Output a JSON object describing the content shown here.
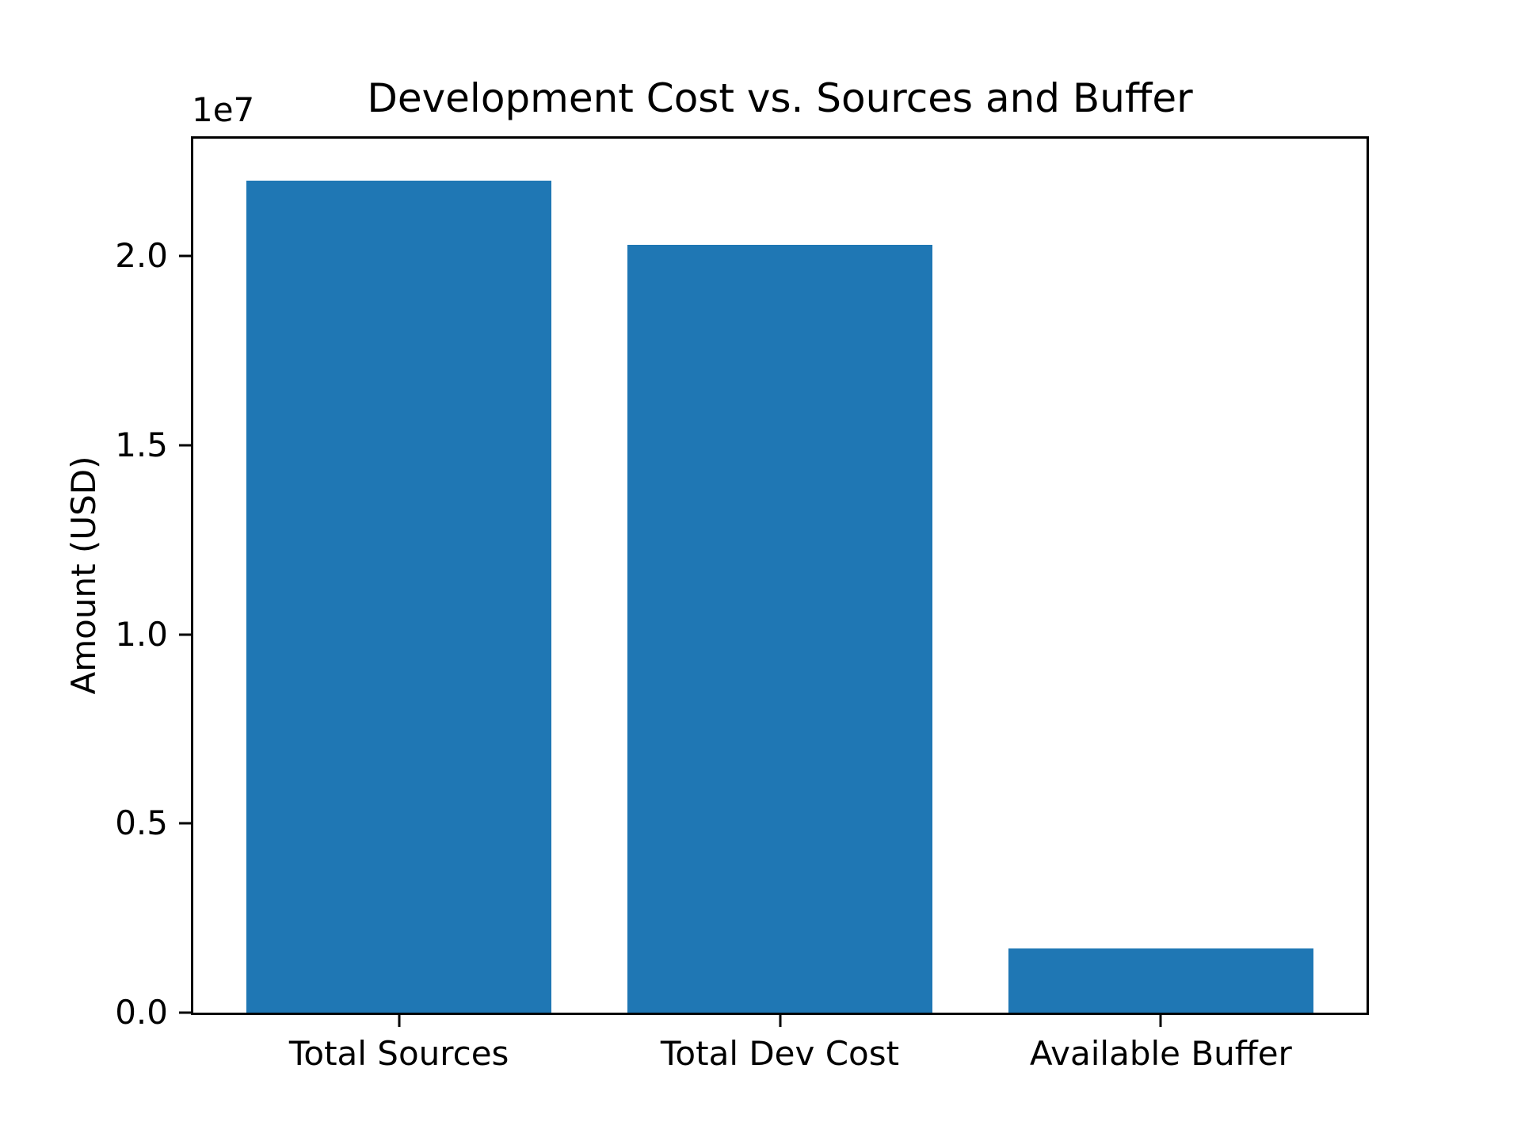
{
  "figure": {
    "background": "#ffffff"
  },
  "chart_data": {
    "type": "bar",
    "title": "Development Cost vs. Sources and Buffer",
    "ylabel": "Amount (USD)",
    "xlabel": "",
    "y_offset_text": "1e7",
    "categories": [
      "Total Sources",
      "Total Dev Cost",
      "Available Buffer"
    ],
    "values": [
      22000000,
      20300000,
      1700000
    ],
    "bar_color": "#1f77b4",
    "axis_color": "#000000",
    "text_color": "#000000",
    "ylim": [
      0,
      23100000
    ],
    "xlim": [
      -0.54,
      2.54
    ],
    "bar_width_units": 0.8,
    "yticks": [
      {
        "value": 0,
        "label": "0.0"
      },
      {
        "value": 5000000,
        "label": "0.5"
      },
      {
        "value": 10000000,
        "label": "1.0"
      },
      {
        "value": 15000000,
        "label": "1.5"
      },
      {
        "value": 20000000,
        "label": "2.0"
      }
    ],
    "grid": false,
    "legend": false
  }
}
